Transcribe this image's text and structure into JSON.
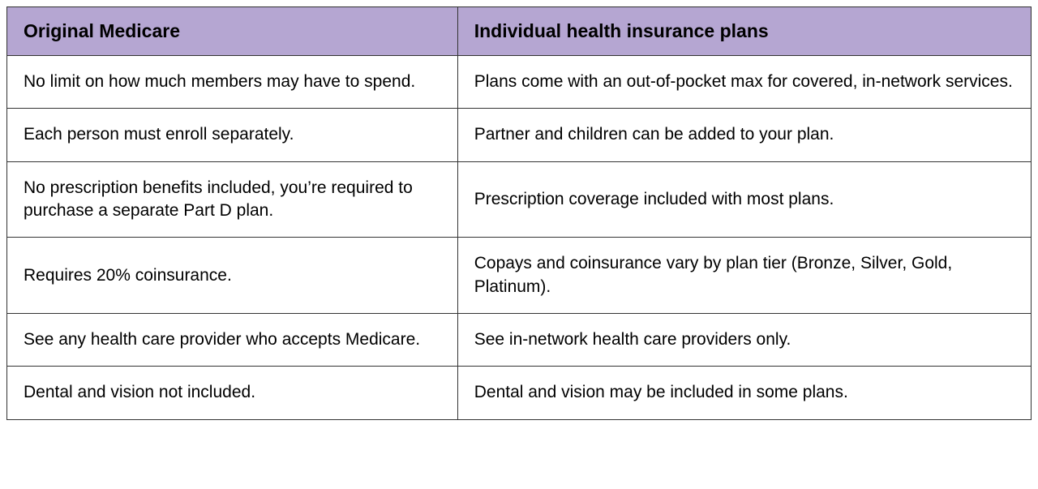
{
  "table": {
    "header_bg": "#b5a6d2",
    "columns": [
      "Original Medicare",
      "Individual health insurance plans"
    ],
    "rows": [
      [
        "No limit on how much members may have to spend.",
        "Plans come with an out-of-pocket max for covered, in-network services."
      ],
      [
        "Each person must enroll separately.",
        "Partner and children can be added to your plan."
      ],
      [
        "No prescription benefits included, you’re required to purchase a separate Part D plan.",
        "Prescription coverage included with most plans."
      ],
      [
        "Requires 20% coinsurance.",
        "Copays and coinsurance vary by plan tier (Bronze, Silver, Gold, Platinum)."
      ],
      [
        "See any health care provider who accepts Medicare.",
        "See in-network health care providers only."
      ],
      [
        "Dental and vision not included.",
        "Dental and vision may be included in some plans."
      ]
    ]
  }
}
